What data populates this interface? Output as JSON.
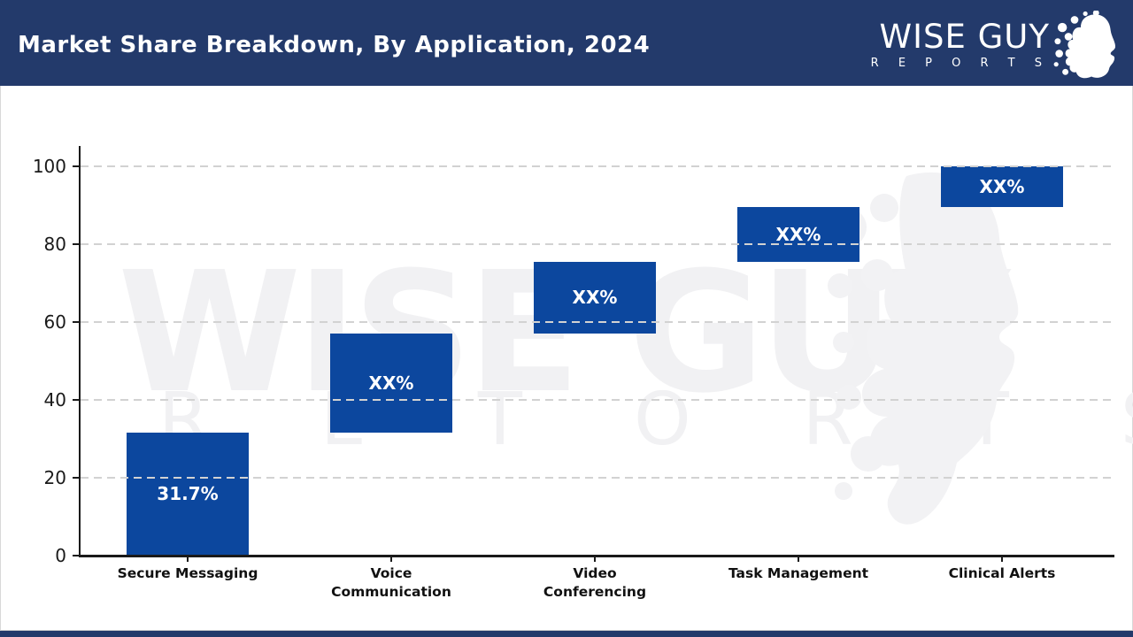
{
  "header": {
    "title": "Market Share Breakdown, By Application, 2024",
    "bg_color": "#233a6b",
    "logo": {
      "line1": "WISE GUY",
      "line2": "R E P O R T S",
      "head_icon": "dotted-face-profile"
    }
  },
  "watermark": {
    "line1": "WISE GUY",
    "line2": "R E T O R T S",
    "head_icon": "dotted-face-profile"
  },
  "chart_data": {
    "type": "bar",
    "subtype": "waterfall-floating-bars",
    "title": "Market Share Breakdown, By Application, 2024",
    "categories": [
      "Secure Messaging",
      "Voice Communication",
      "Video Conferencing",
      "Task Management",
      "Clinical Alerts"
    ],
    "segments": [
      {
        "category": "Secure Messaging",
        "label": "31.7%",
        "start": 0,
        "end": 31.7
      },
      {
        "category": "Voice Communication",
        "label": "XX%",
        "start": 31.7,
        "end": 57
      },
      {
        "category": "Video Conferencing",
        "label": "XX%",
        "start": 57,
        "end": 75.5
      },
      {
        "category": "Task Management",
        "label": "XX%",
        "start": 75.5,
        "end": 89.5
      },
      {
        "category": "Clinical Alerts",
        "label": "XX%",
        "start": 89.5,
        "end": 100
      }
    ],
    "bar_color": "#0c479e",
    "bar_label_color": "#ffffff",
    "yticks": [
      0,
      20,
      40,
      60,
      80,
      100
    ],
    "ylim": [
      0,
      104
    ],
    "xlabel": "",
    "ylabel": "",
    "grid": "horizontal-dashed-over-bars",
    "grid_color": "#d2d2d2",
    "legend": "none"
  },
  "footer": {
    "bar_color": "#233a6b"
  }
}
